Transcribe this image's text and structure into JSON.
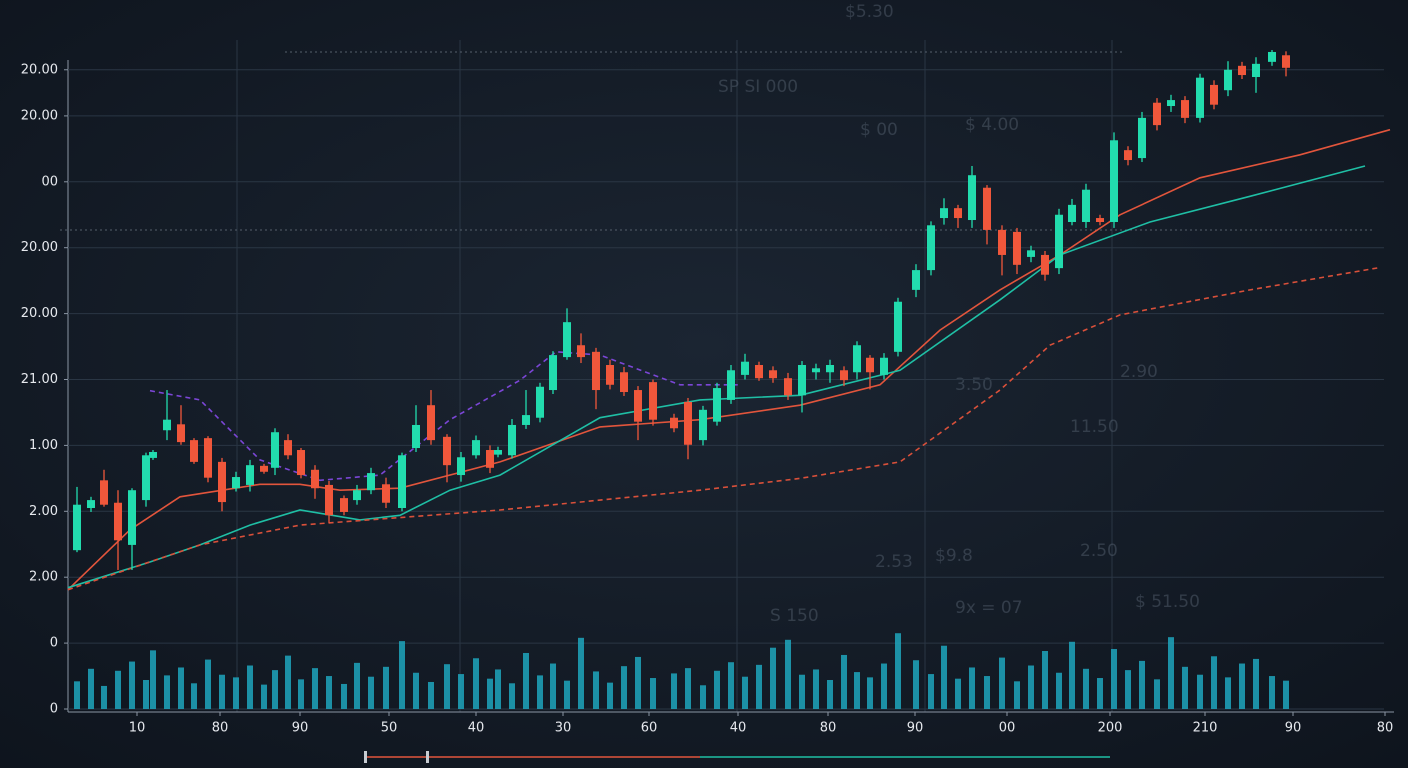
{
  "chart_data": {
    "type": "candlestick",
    "xlim": [
      0,
      1324
    ],
    "ylim": [
      0,
      100
    ],
    "xticks": [
      {
        "value": 69,
        "label": "10"
      },
      {
        "value": 152,
        "label": "80"
      },
      {
        "value": 232,
        "label": "90"
      },
      {
        "value": 321,
        "label": "50"
      },
      {
        "value": 408,
        "label": "40"
      },
      {
        "value": 495,
        "label": "30"
      },
      {
        "value": 581,
        "label": "60"
      },
      {
        "value": 670,
        "label": "40"
      },
      {
        "value": 760,
        "label": "80"
      },
      {
        "value": 847,
        "label": "90"
      },
      {
        "value": 939,
        "label": "00"
      },
      {
        "value": 1042,
        "label": "200"
      },
      {
        "value": 1137,
        "label": "210"
      },
      {
        "value": 1225,
        "label": "90"
      },
      {
        "value": 1317,
        "label": "80"
      }
    ],
    "yticks": [
      {
        "value": 97,
        "label": "20.00"
      },
      {
        "value": 90,
        "label": "20.00"
      },
      {
        "value": 80,
        "label": "00"
      },
      {
        "value": 70,
        "label": "20.00"
      },
      {
        "value": 60,
        "label": "20.00"
      },
      {
        "value": 50,
        "label": "21.00"
      },
      {
        "value": 40,
        "label": "1.00"
      },
      {
        "value": 30,
        "label": "2.00"
      },
      {
        "value": 20,
        "label": "2.00"
      },
      {
        "value": 10,
        "label": "0"
      },
      0
    ],
    "grid": true,
    "up_color": "#22dcae",
    "down_color": "#f0573b",
    "volume_color": "#1ea6bd",
    "x": [
      9,
      23,
      36,
      50,
      64,
      78,
      85,
      99,
      113,
      126,
      140,
      154,
      168,
      182,
      196,
      207,
      220,
      233,
      247,
      261,
      276,
      289,
      303,
      318,
      334,
      348,
      363,
      379,
      393,
      408,
      422,
      430,
      444,
      458,
      472,
      485,
      499,
      513,
      528,
      542,
      556,
      570,
      585,
      606,
      620,
      635,
      649,
      663,
      677,
      691,
      705,
      720,
      734,
      748,
      762,
      776,
      789,
      802,
      816,
      830,
      848,
      863,
      876,
      890,
      904,
      919,
      934,
      949,
      963,
      977,
      991,
      1004,
      1018,
      1032,
      1046,
      1060,
      1074,
      1089,
      1103,
      1117,
      1132,
      1146,
      1160,
      1174,
      1188,
      1204,
      1218
    ],
    "open": [
      24.1,
      30.5,
      34.7,
      31.3,
      24.9,
      31.7,
      38.1,
      42.3,
      43.2,
      40.8,
      41.1,
      37.5,
      33.5,
      34.0,
      36.9,
      36.6,
      40.8,
      39.3,
      36.3,
      34.0,
      32.0,
      31.7,
      33.2,
      34.1,
      30.5,
      39.6,
      46.1,
      41.3,
      35.5,
      38.5,
      39.3,
      38.6,
      38.5,
      43.1,
      44.2,
      48.4,
      53.4,
      55.2,
      54.2,
      52.2,
      51.1,
      48.4,
      49.6,
      44.2,
      46.6,
      40.8,
      43.6,
      46.9,
      50.7,
      52.2,
      51.4,
      50.2,
      47.6,
      51.1,
      51.1,
      51.4,
      51.1,
      53.3,
      50.7,
      54.2,
      63.6,
      66.6,
      74.5,
      76.0,
      74.2,
      79.1,
      72.7,
      72.4,
      68.6,
      68.9,
      66.9,
      73.9,
      73.9,
      74.5,
      73.9,
      84.8,
      83.6,
      92.0,
      91.5,
      92.4,
      89.7,
      94.7,
      93.9,
      97.6,
      95.9,
      98.2,
      99.2
    ],
    "high": [
      33.7,
      32.2,
      36.3,
      33.2,
      33.5,
      38.9,
      39.3,
      48.4,
      46.1,
      41.1,
      41.4,
      38.1,
      36.0,
      37.8,
      37.2,
      42.6,
      41.7,
      39.6,
      37.0,
      34.6,
      32.4,
      34.0,
      36.6,
      35.1,
      38.9,
      46.1,
      48.4,
      41.7,
      39.0,
      41.5,
      40.0,
      39.8,
      44.0,
      48.4,
      49.5,
      54.3,
      60.8,
      57.0,
      54.8,
      53.0,
      51.9,
      49.0,
      50.0,
      44.8,
      47.2,
      46.0,
      49.5,
      52.2,
      53.9,
      52.7,
      52.0,
      51.0,
      52.8,
      52.4,
      53.0,
      52.0,
      55.8,
      53.7,
      54.0,
      62.4,
      67.5,
      74.0,
      77.5,
      76.5,
      82.4,
      79.5,
      73.4,
      73.0,
      70.3,
      69.5,
      75.9,
      77.4,
      79.7,
      75.0,
      87.5,
      85.4,
      90.6,
      92.7,
      93.2,
      93.0,
      96.4,
      95.4,
      98.3,
      98.2,
      98.9,
      100,
      99.8
    ],
    "low": [
      23.8,
      29.9,
      30.7,
      21.1,
      21.1,
      30.7,
      37.8,
      40.8,
      40.1,
      37.2,
      34.4,
      30.0,
      33.0,
      33.0,
      35.7,
      35.5,
      37.9,
      35.0,
      31.9,
      28.2,
      29.4,
      31.0,
      32.6,
      30.5,
      30.0,
      39.0,
      40.1,
      34.4,
      34.5,
      38.0,
      35.8,
      38.2,
      38.0,
      42.5,
      43.5,
      47.8,
      53.0,
      52.5,
      45.5,
      48.5,
      47.5,
      40.8,
      43.0,
      42.0,
      37.9,
      40.0,
      43.0,
      46.3,
      50.0,
      49.8,
      49.5,
      46.9,
      45.0,
      50.0,
      49.5,
      49.0,
      50.0,
      48.5,
      50.0,
      53.5,
      62.5,
      65.8,
      73.5,
      73.0,
      73.0,
      70.5,
      65.8,
      66.0,
      67.8,
      65.0,
      66.0,
      73.4,
      73.0,
      73.4,
      73.0,
      82.5,
      83.0,
      87.8,
      90.6,
      88.9,
      89.0,
      91.0,
      93.0,
      95.6,
      93.5,
      97.6,
      96.0
    ],
    "close": [
      31.0,
      31.7,
      31.0,
      25.6,
      33.2,
      38.5,
      39.0,
      43.9,
      40.5,
      37.5,
      35.1,
      31.4,
      35.2,
      37.0,
      36.0,
      42.0,
      38.5,
      35.5,
      33.5,
      29.4,
      29.9,
      33.2,
      35.8,
      31.3,
      38.5,
      43.1,
      40.8,
      37.0,
      38.2,
      40.8,
      36.6,
      39.3,
      43.1,
      44.6,
      48.9,
      53.7,
      58.7,
      53.4,
      48.4,
      49.2,
      48.1,
      43.6,
      43.9,
      42.6,
      40.1,
      45.4,
      48.7,
      51.4,
      52.7,
      50.2,
      50.2,
      47.6,
      52.2,
      51.7,
      52.2,
      49.9,
      55.2,
      51.1,
      53.3,
      61.8,
      66.6,
      73.4,
      76.0,
      74.5,
      81.0,
      72.7,
      68.9,
      67.4,
      69.6,
      65.9,
      75.0,
      76.5,
      78.8,
      73.9,
      86.3,
      83.3,
      89.7,
      88.6,
      92.4,
      89.7,
      95.8,
      91.7,
      97.0,
      96.2,
      97.9,
      99.7,
      97.3
    ],
    "volume": [
      4.2,
      6.1,
      3.5,
      5.8,
      7.2,
      4.4,
      8.9,
      5.1,
      6.3,
      3.9,
      7.5,
      5.2,
      4.8,
      6.6,
      3.7,
      5.9,
      8.1,
      4.5,
      6.2,
      5.0,
      3.8,
      7.0,
      4.9,
      6.4,
      10.3,
      5.5,
      4.1,
      6.8,
      5.3,
      7.7,
      4.6,
      6.0,
      3.9,
      8.5,
      5.1,
      6.9,
      4.3,
      10.8,
      5.7,
      4.0,
      6.5,
      7.9,
      4.7,
      5.4,
      6.2,
      3.6,
      5.8,
      7.1,
      4.9,
      6.7,
      9.3,
      10.5,
      5.2,
      6.0,
      4.4,
      8.2,
      5.6,
      4.8,
      6.9,
      11.5,
      7.4,
      5.3,
      9.6,
      4.6,
      6.3,
      5.0,
      7.8,
      4.2,
      6.6,
      8.8,
      5.5,
      10.2,
      6.1,
      4.7,
      9.1,
      5.9,
      7.3,
      4.5,
      10.9,
      6.4,
      5.2,
      8.0,
      4.8,
      6.9,
      7.6,
      5.0,
      4.3
    ],
    "lines": [
      {
        "color": "#e2553c",
        "dashed": false,
        "x": [
          0,
          62,
          112,
          192,
          232,
          272,
          332,
          432,
          532,
          632,
          732,
          812,
          872,
          932,
          992,
          1052,
          1132,
          1232,
          1322
        ],
        "values": [
          18.1,
          27.2,
          32.2,
          34.1,
          34.1,
          33.2,
          33.5,
          37.5,
          42.8,
          43.9,
          46.1,
          49.2,
          57.5,
          63.6,
          68.9,
          75.0,
          80.6,
          84.1,
          87.9
        ]
      },
      {
        "color": "#1fbfa5",
        "dashed": false,
        "x": [
          0,
          82,
          132,
          182,
          232,
          292,
          332,
          382,
          432,
          532,
          632,
          732,
          832,
          932,
          992,
          1082,
          1182,
          1297
        ],
        "values": [
          18.4,
          22.3,
          24.9,
          27.9,
          30.2,
          28.7,
          29.4,
          33.2,
          35.5,
          44.2,
          46.9,
          47.6,
          51.4,
          62.1,
          68.9,
          73.9,
          77.8,
          82.4
        ]
      },
      {
        "color": "#d9503a",
        "dashed": true,
        "x": [
          0,
          132,
          232,
          432,
          632,
          732,
          832,
          932,
          982,
          1052,
          1182,
          1312
        ],
        "values": [
          18.1,
          24.9,
          27.9,
          30.2,
          33.2,
          35.0,
          37.5,
          48.4,
          55.2,
          59.8,
          63.6,
          67.0
        ]
      },
      {
        "color": "#7b46d6",
        "dashed": true,
        "x": [
          82,
          132,
          192,
          252,
          312,
          382,
          452,
          488,
          532,
          612,
          672
        ],
        "values": [
          48.3,
          46.9,
          37.8,
          34.7,
          35.5,
          43.9,
          49.9,
          54.2,
          53.7,
          49.2,
          49.2
        ]
      }
    ],
    "annotations": [
      "$5.30",
      "SP SI 000",
      "$ 00",
      "$ 4.00",
      "3.50",
      "2.90",
      "11.50",
      "2.50",
      "2.53",
      "$9.8",
      "9x = 07",
      "$ 51.50",
      "S 150"
    ]
  }
}
